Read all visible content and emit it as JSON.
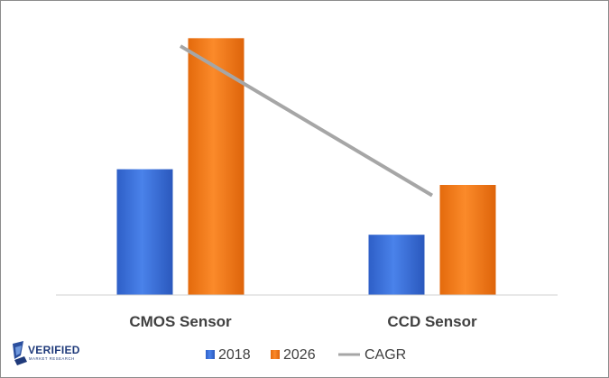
{
  "chart_data": {
    "type": "bar",
    "categories": [
      "CMOS Sensor",
      "CCD Sensor"
    ],
    "series": [
      {
        "name": "2018",
        "kind": "bar",
        "values": [
          2.4,
          1.15
        ],
        "color": "#3a6fd6"
      },
      {
        "name": "2026",
        "kind": "bar",
        "values": [
          4.9,
          2.1
        ],
        "color": "#f07a18"
      },
      {
        "name": "CAGR",
        "kind": "line",
        "values": [
          4.75,
          1.9
        ],
        "color": "#a6a6a6"
      }
    ],
    "ylim": [
      0,
      5.25
    ],
    "grid": false,
    "legend_position": "bottom",
    "title": "",
    "xlabel": "",
    "ylabel": ""
  },
  "logo": {
    "main": "VERIFIED",
    "sub": "MARKET RESEARCH"
  }
}
